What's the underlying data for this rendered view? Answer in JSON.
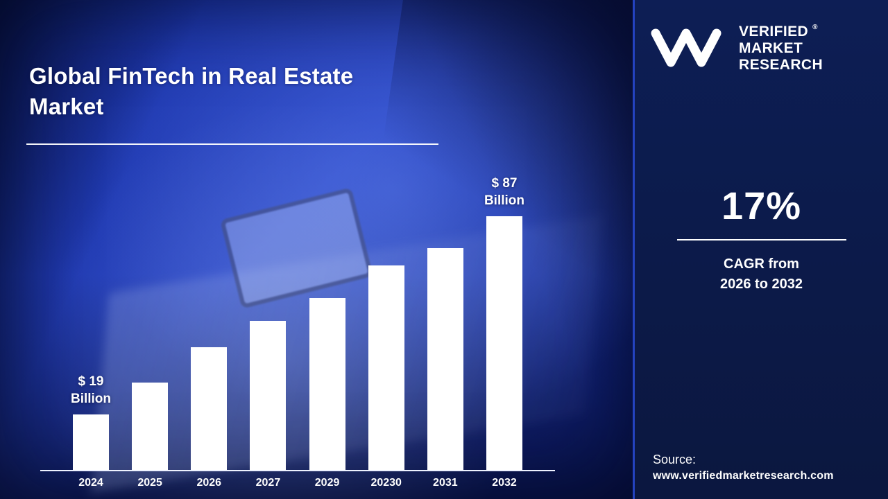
{
  "title": "Global FinTech in Real Estate Market",
  "brand": {
    "line1": "VERIFIED",
    "line2": "MARKET",
    "line3": "RESEARCH",
    "registered": "®"
  },
  "stat": {
    "value": "17%",
    "caption_line1": "CAGR from",
    "caption_line2": "2026 to 2032"
  },
  "source": {
    "label": "Source:",
    "url": "www.verifiedmarketresearch.com"
  },
  "colors": {
    "panel_bg": "#0b173f",
    "left_bg": "#2a49d6",
    "bar_color": "#ffffff",
    "text_color": "#ffffff"
  },
  "chart_data": {
    "type": "bar",
    "title": "Global FinTech in Real Estate Market",
    "categories": [
      "2024",
      "2025",
      "2026",
      "2027",
      "2029",
      "20230",
      "2031",
      "2032"
    ],
    "values": [
      19,
      30,
      42,
      51,
      59,
      70,
      76,
      87
    ],
    "ylim": [
      0,
      95
    ],
    "grid": false,
    "legend": "none",
    "annotations": [
      {
        "index": 0,
        "text": "$ 19 Billion"
      },
      {
        "index": 7,
        "text": "$ 87 Billion"
      }
    ]
  }
}
